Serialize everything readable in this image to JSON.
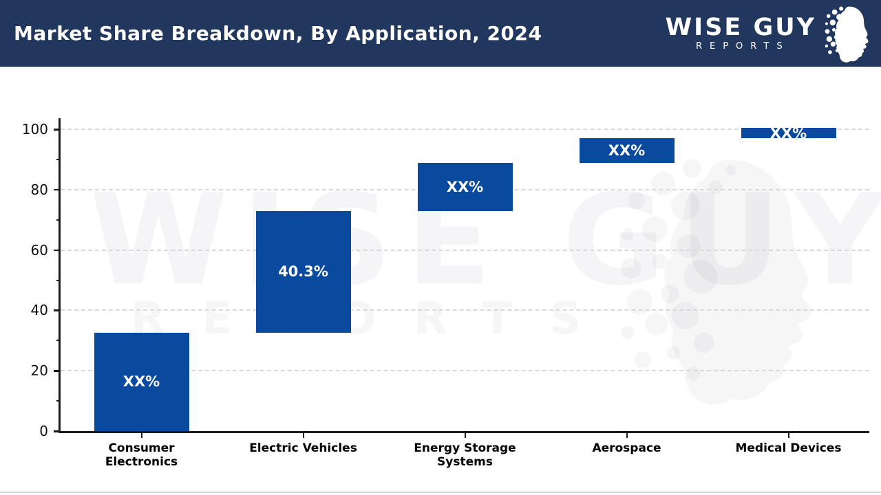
{
  "header": {
    "title": "Market Share Breakdown, By Application, 2024",
    "bg_color": "#21375E",
    "logo": {
      "line1": "WISE GUY",
      "line2": "REPORTS"
    }
  },
  "watermark": {
    "line1": "WISE GUY",
    "line2": "REPORTS"
  },
  "chart_data": {
    "type": "bar",
    "subtype": "waterfall-floating-bars",
    "title": "Market Share Breakdown, By Application, 2024",
    "categories": [
      "Consumer Electronics",
      "Electric Vehicles",
      "Energy Storage Systems",
      "Aerospace",
      "Medical Devices"
    ],
    "segments": [
      {
        "category": "Consumer Electronics",
        "start": 0,
        "end": 32.6,
        "label": "XX%"
      },
      {
        "category": "Electric Vehicles",
        "start": 32.6,
        "end": 72.9,
        "label": "40.3%"
      },
      {
        "category": "Energy Storage Systems",
        "start": 72.9,
        "end": 88.9,
        "label": "XX%"
      },
      {
        "category": "Aerospace",
        "start": 88.9,
        "end": 97.0,
        "label": "XX%"
      },
      {
        "category": "Medical Devices",
        "start": 97.0,
        "end": 100.4,
        "label": "XX%"
      }
    ],
    "xlabel": "",
    "ylabel": "",
    "ylim": [
      0,
      104
    ],
    "yticks": [
      0,
      20,
      40,
      60,
      80,
      100
    ],
    "minor_yticks": [
      10,
      30,
      50,
      70,
      90
    ],
    "bar_color": "#0A4A9E",
    "bar_label_color": "#ffffff",
    "grid": "horizontal-dashed",
    "grid_color": "#d9d9d9",
    "legend": "none"
  }
}
